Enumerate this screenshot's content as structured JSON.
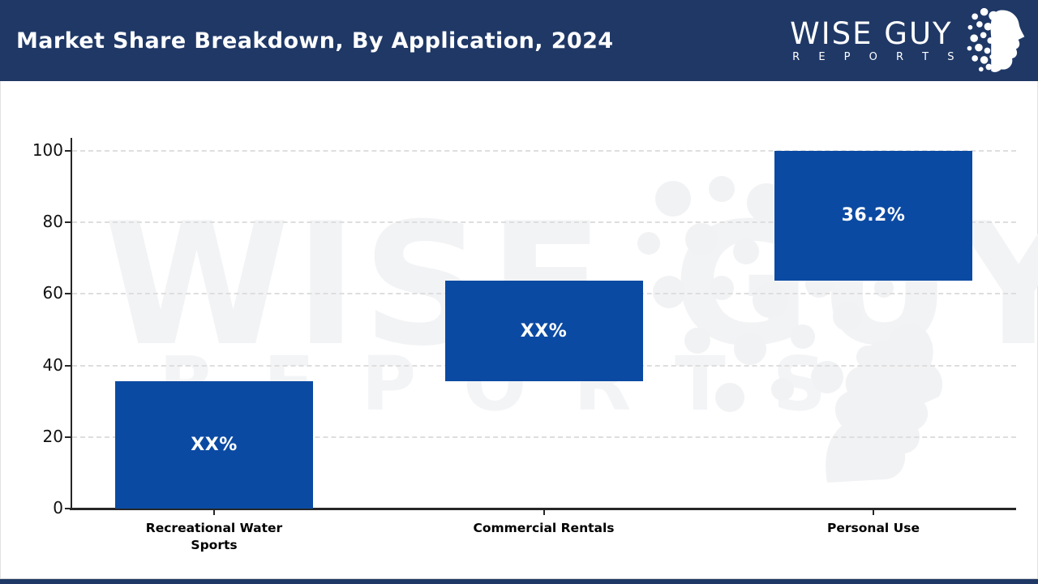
{
  "header": {
    "title": "Market Share Breakdown, By Application, 2024",
    "bg_color": "#1f3866",
    "logo": {
      "wordmark": "WISE GUY",
      "subtext": "R E P O R T S"
    }
  },
  "watermark": {
    "wordmark": "WISE GUY",
    "subtext": "REPORTS"
  },
  "chart_data": {
    "type": "bar",
    "variant": "floating-waterfall",
    "title": "Market Share Breakdown, By Application, 2024",
    "categories": [
      "Recreational Water Sports",
      "Commercial Rentals",
      "Personal Use"
    ],
    "bars": [
      {
        "category": "Recreational Water Sports",
        "from": 0,
        "to": 35.5,
        "label": "XX%"
      },
      {
        "category": "Commercial Rentals",
        "from": 35.5,
        "to": 63.8,
        "label": "XX%"
      },
      {
        "category": "Personal Use",
        "from": 63.8,
        "to": 100,
        "label": "36.2%"
      }
    ],
    "ylim": [
      0,
      100
    ],
    "yticks": [
      0,
      20,
      40,
      60,
      80,
      100
    ],
    "xlabel": "",
    "ylabel": "",
    "grid": "horizontal-dashed",
    "legend": "none",
    "bar_color": "#0b4aa2",
    "grid_color": "#dedede",
    "axis_color": "#262626"
  }
}
